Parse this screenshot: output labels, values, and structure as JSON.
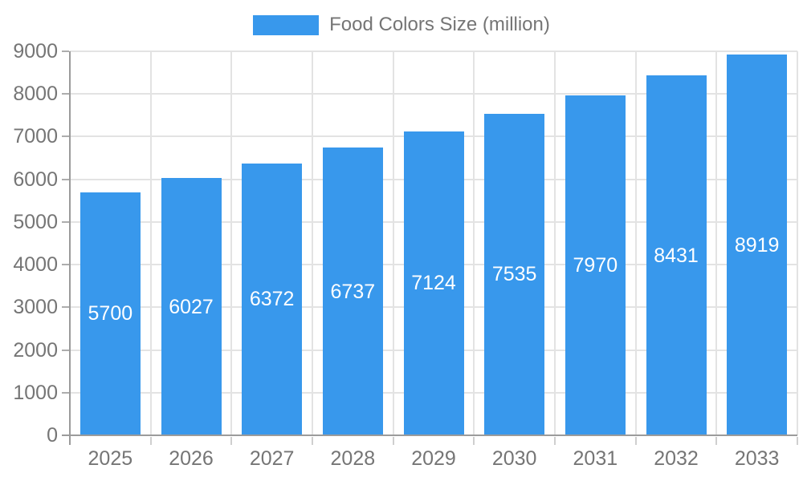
{
  "chart_data": {
    "type": "bar",
    "title": "",
    "legend": {
      "label": "Food Colors Size (million)",
      "position": "top-center"
    },
    "categories": [
      "2025",
      "2026",
      "2027",
      "2028",
      "2029",
      "2030",
      "2031",
      "2032",
      "2033"
    ],
    "series": [
      {
        "name": "Food Colors Size (million)",
        "values": [
          5700,
          6027,
          6372,
          6737,
          7124,
          7535,
          7970,
          8431,
          8919
        ]
      }
    ],
    "value_labels_visible": true,
    "ylim": [
      0,
      9000
    ],
    "yticks": [
      0,
      1000,
      2000,
      3000,
      4000,
      5000,
      6000,
      7000,
      8000,
      9000
    ],
    "grid": "horizontal and vertical category boundaries",
    "colors": {
      "bar": "#3898EC",
      "bar_value_text": "#FFFFFF",
      "axis_line": "#9B9B9B",
      "gridline": "#E3E3E3",
      "y_tick_mark": "#ADADAD",
      "x_tick_mark": "#CFCFCF",
      "tick_label_text": "#757575",
      "legend_text": "#757575",
      "background": "#FFFFFF"
    }
  }
}
